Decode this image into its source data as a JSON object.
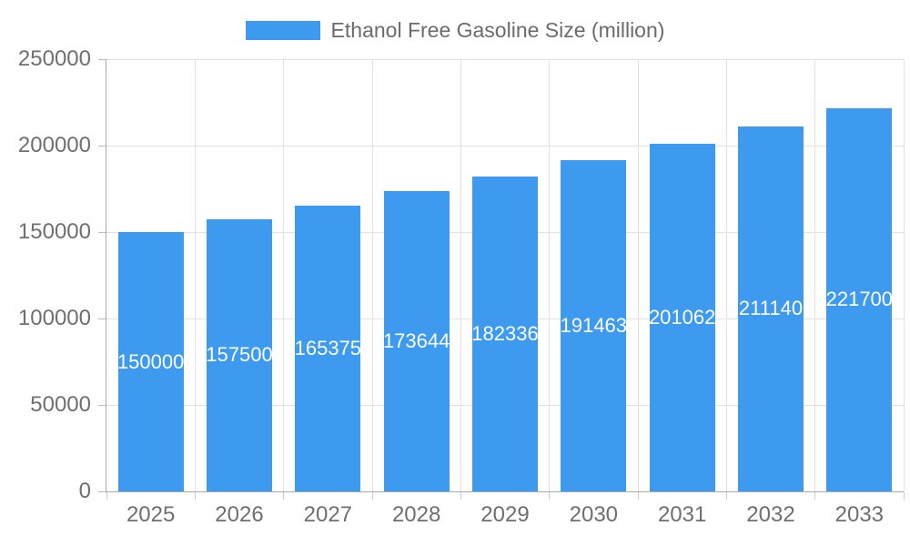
{
  "legend": {
    "label": "Ethanol Free Gasoline Size (million)"
  },
  "colors": {
    "bar": "#3d9aef",
    "axis_label": "#6f6f6f",
    "grid_line": "#e2e2e2",
    "axis_line": "#aaaaaa",
    "value_label": "#ffffff",
    "background": "#ffffff"
  },
  "chart_data": {
    "type": "bar",
    "title": "",
    "xlabel": "",
    "ylabel": "",
    "categories": [
      "2025",
      "2026",
      "2027",
      "2028",
      "2029",
      "2030",
      "2031",
      "2032",
      "2033"
    ],
    "series": [
      {
        "name": "Ethanol Free Gasoline Size (million)",
        "values": [
          150000,
          157500,
          165375,
          173644,
          182336,
          191463,
          201062,
          211140,
          221700
        ],
        "value_labels": [
          "150000",
          "157500",
          "165375",
          "173644",
          "182336",
          "191463",
          "201062",
          "211140",
          "221700"
        ],
        "color": "#3d9aef"
      }
    ],
    "ylim": [
      0,
      250000
    ],
    "y_ticks": [
      0,
      50000,
      100000,
      150000,
      200000,
      250000
    ],
    "y_tick_labels": [
      "0",
      "50000",
      "100000",
      "150000",
      "200000",
      "250000"
    ],
    "grid": true,
    "grid_vertical": true,
    "legend_position": "top",
    "value_label_position": "inside-center"
  }
}
